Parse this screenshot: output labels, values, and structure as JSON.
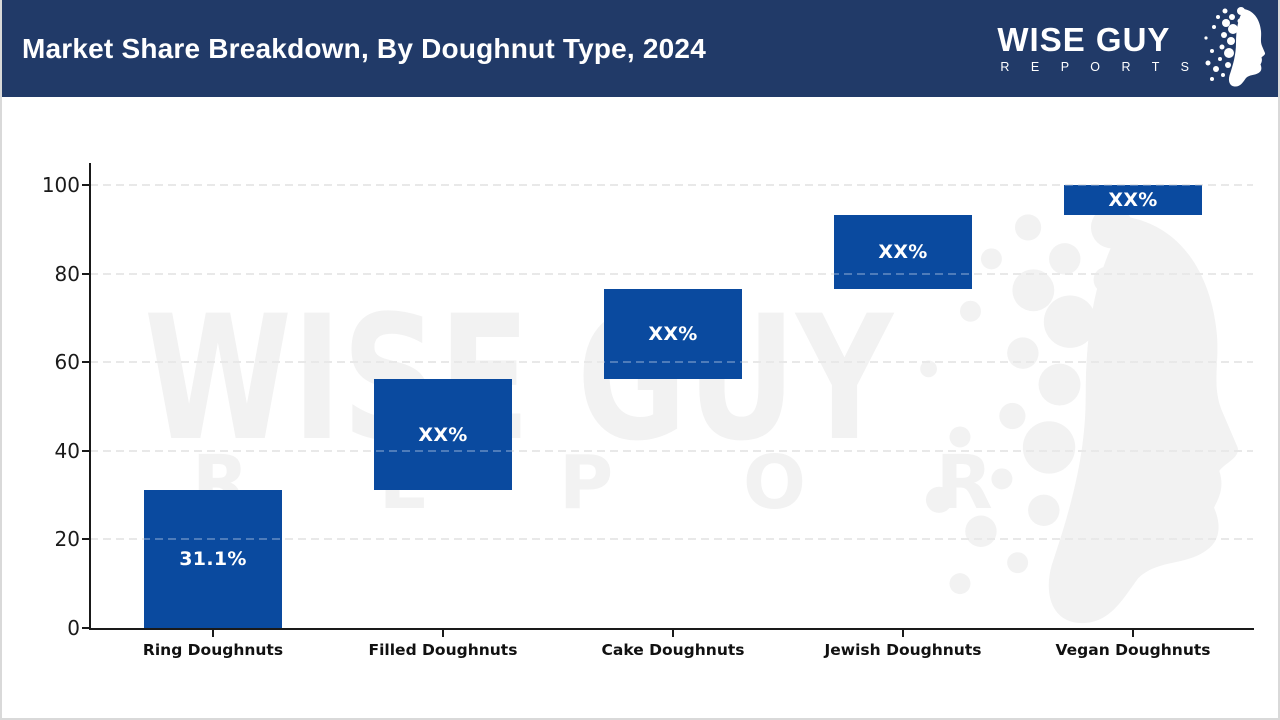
{
  "header": {
    "title": "Market Share Breakdown, By Doughnut Type, 2024",
    "bg_color": "#213a68",
    "logo": {
      "line1": "WISE GUY",
      "line2": "R E P O R T S"
    }
  },
  "watermark": {
    "line1": "WISE GUY",
    "line2": "R E P O R T S"
  },
  "chart_data": {
    "type": "bar",
    "subtype": "waterfall",
    "title": "Market Share Breakdown, By Doughnut Type, 2024",
    "categories": [
      "Ring Doughnuts",
      "Filled Doughnuts",
      "Cake Doughnuts",
      "Jewish Doughnuts",
      "Vegan Doughnuts"
    ],
    "bars": [
      {
        "category": "Ring Doughnuts",
        "start": 0,
        "end": 31.1,
        "label": "31.1%"
      },
      {
        "category": "Filled Doughnuts",
        "start": 31.1,
        "end": 56.2,
        "label": "XX%"
      },
      {
        "category": "Cake Doughnuts",
        "start": 56.2,
        "end": 76.5,
        "label": "XX%"
      },
      {
        "category": "Jewish Doughnuts",
        "start": 76.5,
        "end": 93.3,
        "label": "XX%"
      },
      {
        "category": "Vegan Doughnuts",
        "start": 93.3,
        "end": 100,
        "label": "XX%"
      }
    ],
    "yticks": [
      0,
      20,
      40,
      60,
      80,
      100
    ],
    "ylim": [
      0,
      105
    ],
    "xlabel": "",
    "ylabel": "",
    "grid": "horizontal dashed",
    "legend": "none",
    "bar_color": "#0a4a9f",
    "grid_color": "#e0e0e0",
    "axis_color": "#1a1a1a",
    "value_label_color": "#ffffff"
  }
}
